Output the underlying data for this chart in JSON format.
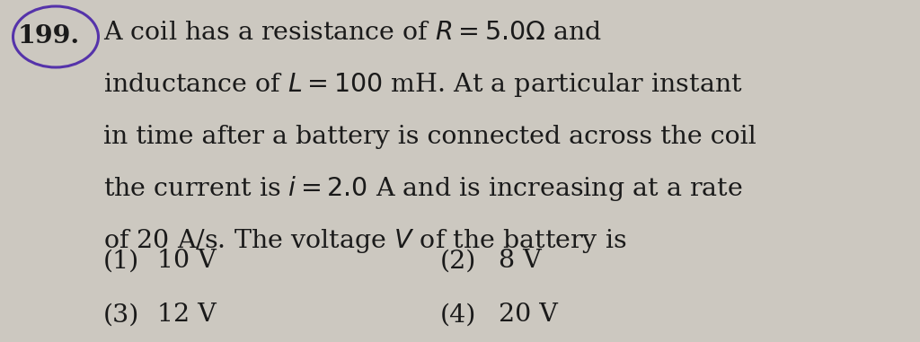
{
  "background_color": "#ccc8c0",
  "question_number": "199.",
  "line1": "A coil has a resistance of $R = 5.0\\Omega$ and",
  "line2": "inductance of $L = 100$ mH. At a particular instant",
  "line3": "in time after a battery is connected across the coil",
  "line4": "the current is $i = 2.0$ A and is increasing at a rate",
  "line5": "of 20 A/s. The voltage $V$ of the battery is",
  "opt1_label": "(1)",
  "opt1_text": "10 V",
  "opt2_label": "(2)",
  "opt2_text": "8 V",
  "opt3_label": "(3)",
  "opt3_text": "12 V",
  "opt4_label": "(4)",
  "opt4_text": "20 V",
  "text_color": "#1a1a1a",
  "font_size_main": 20.5,
  "font_size_opts": 20.5,
  "circle_color": "#5533aa",
  "fig_width": 10.24,
  "fig_height": 3.81,
  "dpi": 100
}
